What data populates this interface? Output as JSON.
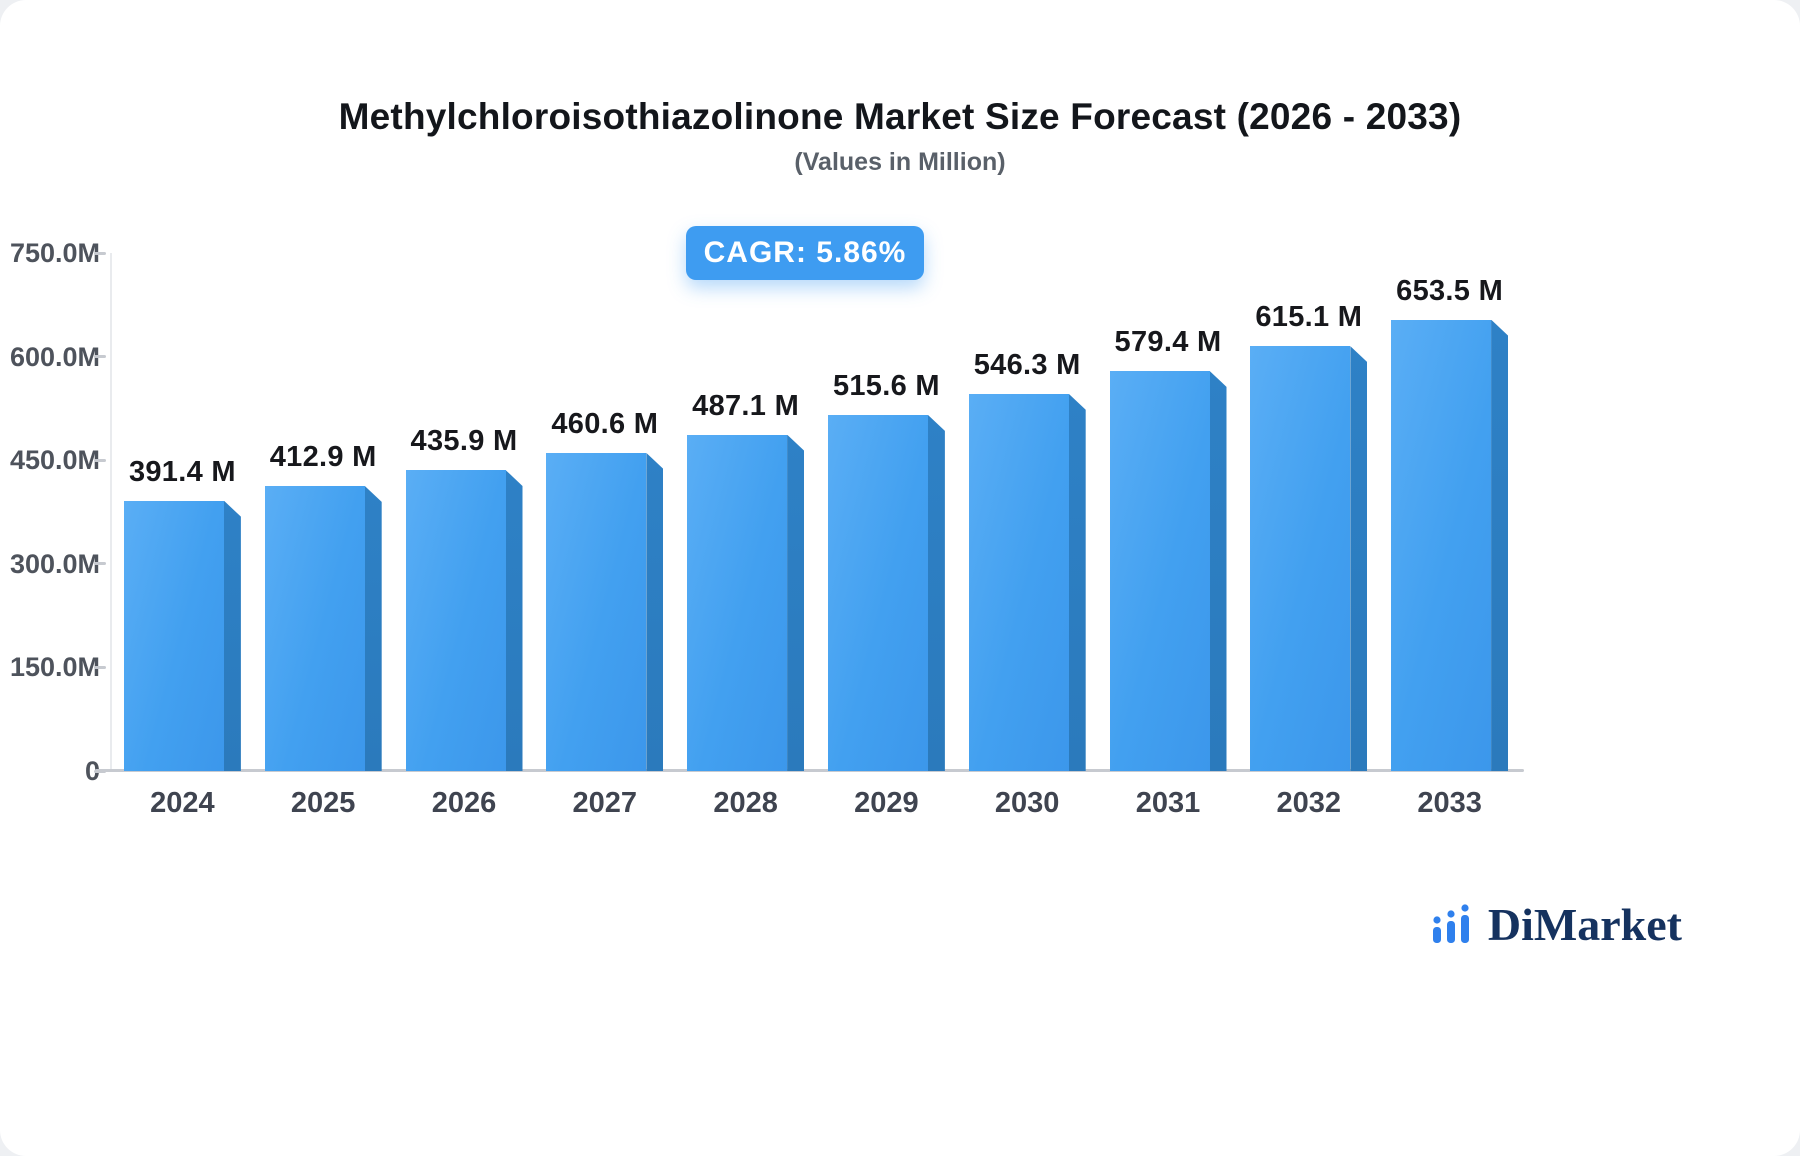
{
  "title": "Methylchloroisothiazolinone Market Size Forecast (2026 - 2033)",
  "subtitle": "(Values in Million)",
  "cagr_badge": "CAGR: 5.86%",
  "brand": {
    "name": "DiMarket",
    "icon": "bar-chart-logo-icon"
  },
  "colors": {
    "bar_face": "#42a0f0",
    "bar_side": "#2b7abc",
    "badge_bg": "#3e9cf1",
    "axis_gray": "#c7cad0",
    "title_text": "#13161b",
    "tick_text": "#4e535c",
    "brand_navy": "#15325f",
    "brand_blue": "#2f80ed"
  },
  "chart_data": {
    "type": "bar",
    "title": "Methylchloroisothiazolinone Market Size Forecast (2026 - 2033)",
    "subtitle": "(Values in Million)",
    "unit": "Million",
    "categories": [
      "2024",
      "2025",
      "2026",
      "2027",
      "2028",
      "2029",
      "2030",
      "2031",
      "2032",
      "2033"
    ],
    "values": [
      391.4,
      412.9,
      435.9,
      460.6,
      487.1,
      515.6,
      546.3,
      579.4,
      615.1,
      653.5
    ],
    "value_labels": [
      "391.4 M",
      "412.9 M",
      "435.9 M",
      "460.6 M",
      "487.1 M",
      "515.6 M",
      "546.3 M",
      "579.4 M",
      "615.1 M",
      "653.5 M"
    ],
    "xlabel": "",
    "ylabel": "",
    "ylim": [
      0,
      750
    ],
    "yticks": [
      0,
      150,
      300,
      450,
      600,
      750
    ],
    "ytick_labels": [
      "0",
      "150.0M",
      "300.0M",
      "450.0M",
      "600.0M",
      "750.0M"
    ],
    "grid": false,
    "legend": false,
    "cagr": "5.86%"
  }
}
